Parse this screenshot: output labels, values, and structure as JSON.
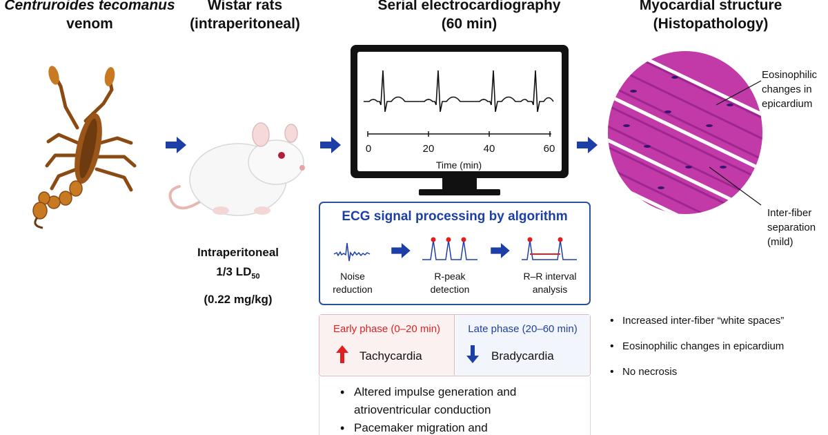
{
  "headers": {
    "venom": {
      "line1": "Centruroides tecomanus",
      "line2": "venom"
    },
    "rats": {
      "line1": "Wistar rats",
      "line2": "(intraperitoneal)"
    },
    "ecg": {
      "line1": "Serial electrocardiography",
      "line2": "(60 min)"
    },
    "histo": {
      "line1": "Myocardial structure",
      "line2": "(Histopathology)"
    }
  },
  "dose": {
    "line1": "Intraperitoneal",
    "line2_prefix": "1/3 LD",
    "line2_sub": "50",
    "line3": "(0.22 mg/kg)"
  },
  "monitor": {
    "tick_labels": [
      "0",
      "20",
      "40",
      "60"
    ],
    "axis_label": "Time (min)"
  },
  "processing": {
    "title": "ECG signal processing by algorithm",
    "steps": [
      {
        "line1": "Noise",
        "line2": "reduction"
      },
      {
        "line1": "R-peak",
        "line2": "detection"
      },
      {
        "line1": "R–R interval",
        "line2": "analysis"
      }
    ]
  },
  "phases": {
    "early": {
      "title": "Early phase (0–20 min)",
      "result": "Tachycardia",
      "color": "#e02020"
    },
    "late": {
      "title": "Late phase (20–60 min)",
      "result": "Bradycardia",
      "color": "#1b3fa6"
    }
  },
  "findings": [
    {
      "line1": "Altered impulse generation and",
      "line2": "atrioventricular conduction"
    },
    {
      "line1": "Pacemaker migration and",
      "line2": ""
    }
  ],
  "histo_annotations": {
    "top": [
      "Eosinophilic",
      "changes in",
      "epicardium"
    ],
    "bottom": [
      "Inter-fiber",
      "separation",
      "(mild)"
    ]
  },
  "histo_findings": [
    "Increased inter-fiber “white spaces”",
    "Eosinophilic changes in epicardium",
    "No necrosis"
  ],
  "colors": {
    "accent_blue": "#1b3fa6",
    "up_red": "#e02020",
    "tissue_pink": "#c23aa8"
  }
}
